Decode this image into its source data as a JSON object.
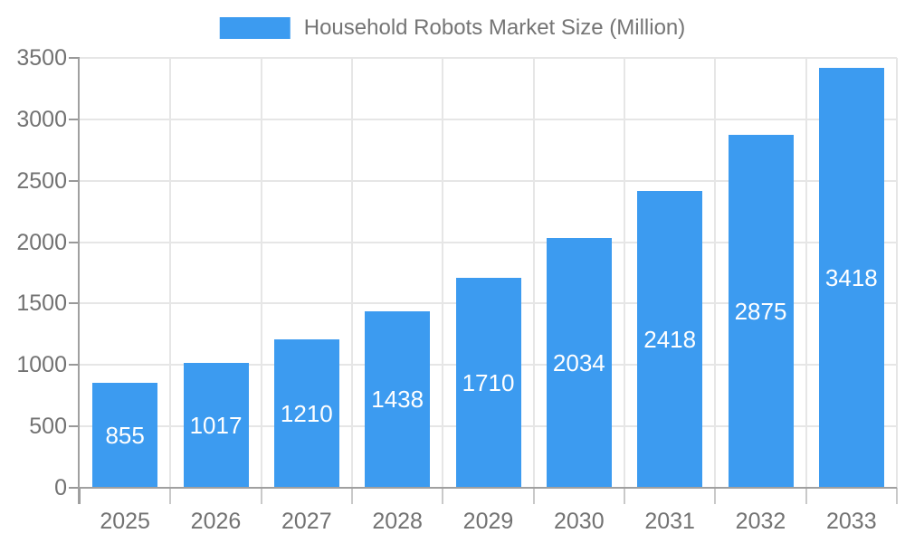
{
  "legend": {
    "label": "Household Robots Market Size (Million)"
  },
  "colors": {
    "bar": "#3C9BF0",
    "legend_text": "#757575",
    "axis_label": "#727272",
    "value_label": "#FFFFFF",
    "grid": "#E6E6E6",
    "axis_line": "#A0A0A0",
    "y_tick": "#999999",
    "x_tick": "#C9C9C9",
    "background": "#FFFFFF"
  },
  "chart_data": {
    "type": "bar",
    "title": "",
    "xlabel": "",
    "ylabel": "",
    "categories": [
      "2025",
      "2026",
      "2027",
      "2028",
      "2029",
      "2030",
      "2031",
      "2032",
      "2033"
    ],
    "series": [
      {
        "name": "Household Robots Market Size (Million)",
        "values": [
          855,
          1017,
          1210,
          1438,
          1710,
          2034,
          2418,
          2875,
          3418
        ]
      }
    ],
    "value_labels": "inside-center-white",
    "ylim": [
      0,
      3500
    ],
    "yticks": [
      0,
      500,
      1000,
      1500,
      2000,
      2500,
      3000,
      3500
    ],
    "grid": true,
    "legend_position": "top-center"
  }
}
